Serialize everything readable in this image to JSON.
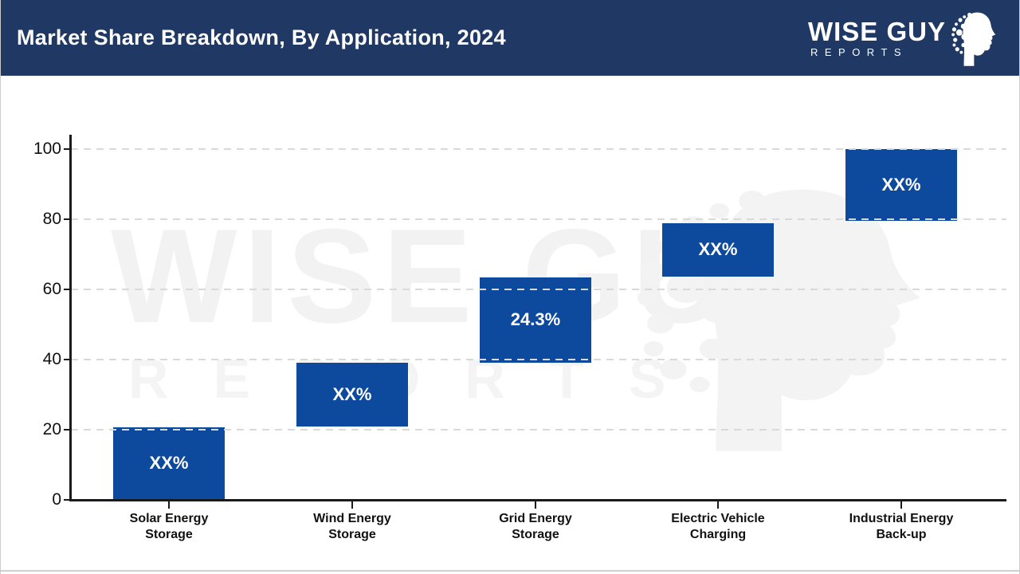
{
  "header": {
    "title": "Market Share Breakdown, By Application, 2024",
    "logo": {
      "line1": "WISE GUY",
      "line2": "REPORTS"
    }
  },
  "watermark": {
    "line1": "WISE GUY",
    "line2": "REPORTS"
  },
  "chart_data": {
    "type": "bar",
    "subtype": "floating-segment-waterfall",
    "title": "Market Share Breakdown, By Application, 2024",
    "categories": [
      "Solar Energy Storage",
      "Wind Energy Storage",
      "Grid Energy Storage",
      "Electric Vehicle Charging",
      "Industrial Energy Back-up"
    ],
    "category_labels": [
      [
        "Solar Energy",
        "Storage"
      ],
      [
        "Wind Energy",
        "Storage"
      ],
      [
        "Grid Energy",
        "Storage"
      ],
      [
        "Electric Vehicle",
        "Charging"
      ],
      [
        "Industrial Energy",
        "Back-up"
      ]
    ],
    "segments": [
      {
        "category": "Solar Energy Storage",
        "start": 0,
        "end": 20.7,
        "label": "XX%"
      },
      {
        "category": "Wind Energy Storage",
        "start": 20.9,
        "end": 39.1,
        "label": "XX%"
      },
      {
        "category": "Grid Energy Storage",
        "start": 39.2,
        "end": 63.5,
        "label": "24.3%"
      },
      {
        "category": "Electric Vehicle Charging",
        "start": 63.6,
        "end": 78.9,
        "label": "XX%"
      },
      {
        "category": "Industrial Energy Back-up",
        "start": 79.5,
        "end": 100,
        "label": "XX%"
      }
    ],
    "ylim": [
      0,
      100
    ],
    "yticks": [
      0,
      20,
      40,
      60,
      80,
      100
    ],
    "xlabel": "",
    "ylabel": "",
    "grid": "horizontal-dashed",
    "legend": "none",
    "colors": {
      "bar": "#0d499c",
      "bar_label": "#ffffff",
      "grid": "#d9d9d9",
      "axis": "#1a1a1a",
      "header_bg": "#1f3864",
      "watermark": "#f2f2f2"
    }
  }
}
